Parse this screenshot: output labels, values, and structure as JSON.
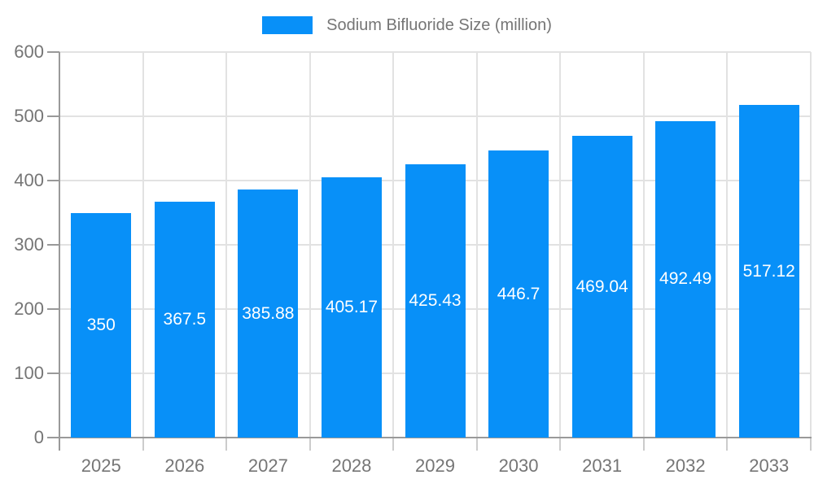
{
  "chart_data": {
    "type": "bar",
    "title": "",
    "legend": {
      "label": "Sodium Bifluoride Size (million)",
      "position": "top"
    },
    "categories": [
      "2025",
      "2026",
      "2027",
      "2028",
      "2029",
      "2030",
      "2031",
      "2032",
      "2033"
    ],
    "series": [
      {
        "name": "Sodium Bifluoride Size (million)",
        "values": [
          350,
          367.5,
          385.88,
          405.17,
          425.43,
          446.7,
          469.04,
          492.49,
          517.12
        ]
      }
    ],
    "value_labels": [
      "350",
      "367.5",
      "385.88",
      "405.17",
      "425.43",
      "446.7",
      "469.04",
      "492.49",
      "517.12"
    ],
    "xlabel": "",
    "ylabel": "",
    "ylim": [
      0,
      600
    ],
    "y_ticks": [
      0,
      100,
      200,
      300,
      400,
      500,
      600
    ],
    "grid": true,
    "value_label_position": "middle-of-bar"
  },
  "colors": {
    "bar": "#0890f8",
    "axis_line": "#999999",
    "y_tick": "#999999",
    "x_tick": "#cccccc",
    "grid_line": "#e2e2e2",
    "axis_label": "#757575",
    "legend_text": "#757575",
    "data_label": "#ffffff",
    "background": "#ffffff"
  }
}
